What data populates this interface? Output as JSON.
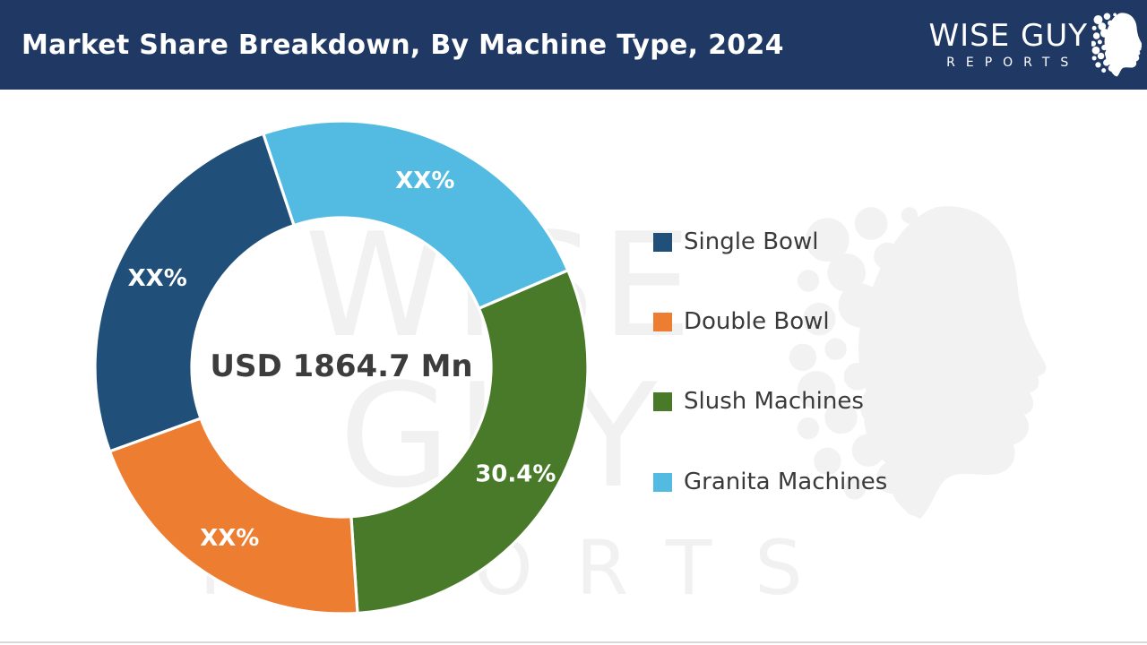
{
  "header": {
    "title": "Market Share Breakdown, By Machine Type, 2024",
    "logo": {
      "line1": "WISE GUY",
      "line2": "REPORTS"
    }
  },
  "watermark": {
    "line1": "WISE GUY",
    "line2": "REPORTS"
  },
  "chart_data": {
    "type": "pie",
    "subtype": "donut",
    "title": "Market Share Breakdown, By Machine Type, 2024",
    "center_label": "USD 1864.7 Mn",
    "legend_position": "right",
    "start_angle_deg_clockwise_from_top": 341.5,
    "draw_order_note": "segments drawn clockwise from start angle in reverse of legend order: Granita, Slush, Double, Single",
    "segments": [
      {
        "label": "Single Bowl",
        "display_value": "XX%",
        "share_pct_estimate": 25.4,
        "color": "#20507A"
      },
      {
        "label": "Double Bowl",
        "display_value": "XX%",
        "share_pct_estimate": 20.5,
        "color": "#ED7D31"
      },
      {
        "label": "Slush Machines",
        "display_value": "30.4%",
        "share_pct_estimate": 30.4,
        "color": "#487A2A"
      },
      {
        "label": "Granita Machines",
        "display_value": "XX%",
        "share_pct_estimate": 23.7,
        "color": "#53BBE2"
      }
    ],
    "colors": {
      "header_bar": "#203864",
      "background": "#FFFFFF",
      "slice_label_text": "#FFFFFF",
      "center_text": "#3C3C3C",
      "legend_text": "#3A3A3A",
      "watermark": "#F2F2F2"
    }
  }
}
